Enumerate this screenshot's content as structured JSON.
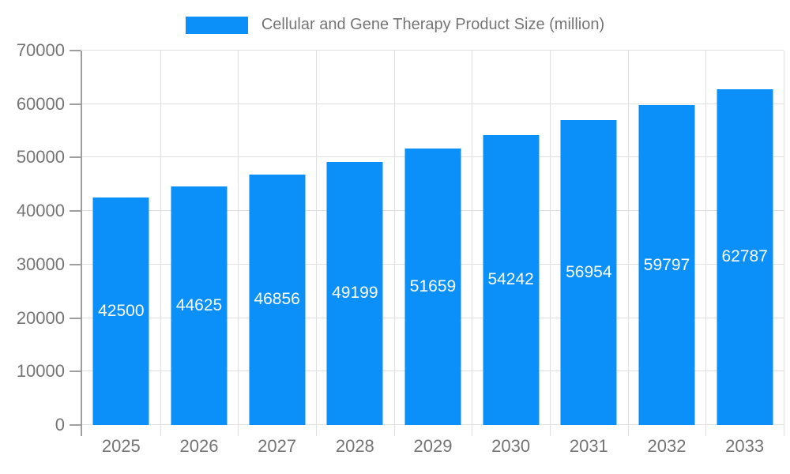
{
  "legend": {
    "label": "Cellular and Gene Therapy Product Size (million)",
    "position": "top"
  },
  "chart_data": {
    "type": "bar",
    "title": "Cellular and Gene Therapy Product Size (million)",
    "categories": [
      "2025",
      "2026",
      "2027",
      "2028",
      "2029",
      "2030",
      "2031",
      "2032",
      "2033"
    ],
    "values": [
      42500,
      44625,
      46856,
      49199,
      51659,
      54242,
      56954,
      59797,
      62787
    ],
    "xlabel": "",
    "ylabel": "",
    "ylim": [
      0,
      70000
    ],
    "ytick_step": 10000,
    "ytick_labels": [
      "0",
      "10000",
      "20000",
      "30000",
      "40000",
      "50000",
      "60000",
      "70000"
    ],
    "grid": true,
    "legend_position": "top",
    "bar_labels_inside": true
  },
  "colors": {
    "background": "#ffffff",
    "bar": "#0a90f8",
    "grid": "#e0e0e0",
    "axis": "#9e9e9e",
    "tick_text": "#757575",
    "bar_label": "#ffffff"
  }
}
